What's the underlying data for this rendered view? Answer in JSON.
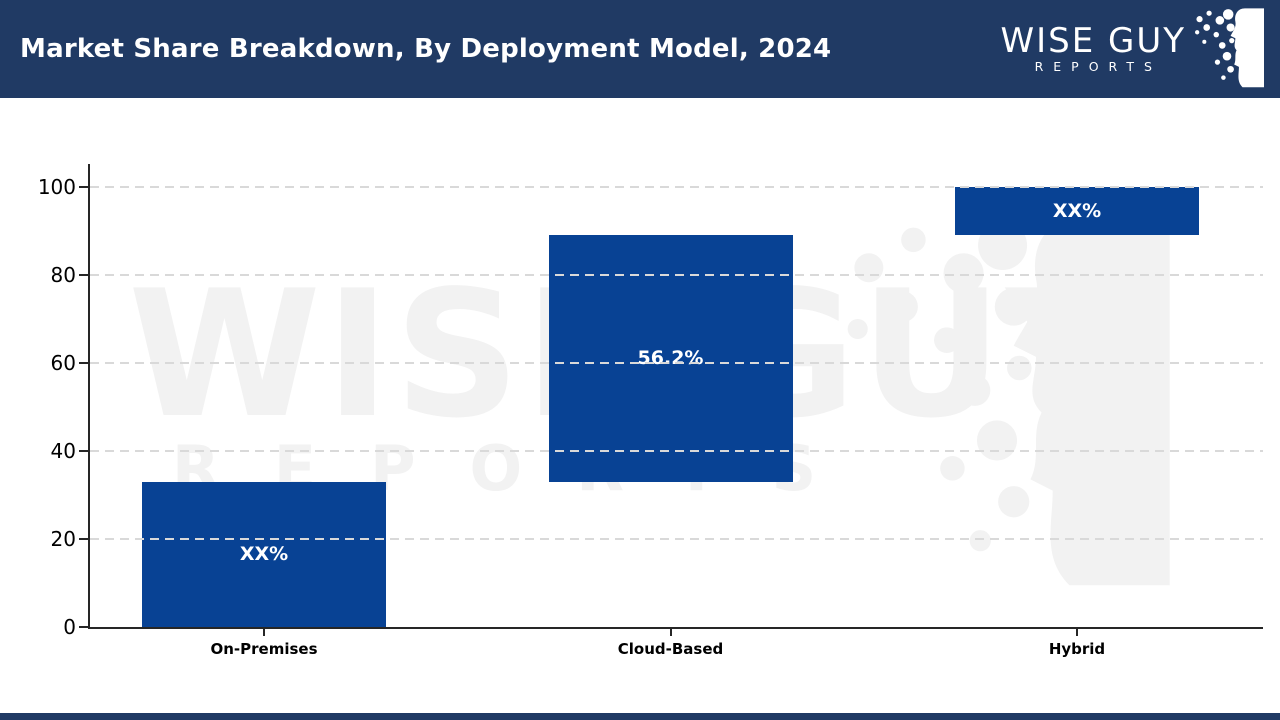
{
  "header": {
    "title": "Market Share Breakdown, By Deployment Model, 2024",
    "logo": {
      "line1": "WISE GUY",
      "line2": "REPORTS"
    }
  },
  "watermark": {
    "line1": "WISE GUY",
    "line2": "REPORTS"
  },
  "chart_data": {
    "type": "bar",
    "subtype": "floating-segment-waterfall",
    "title": "Market Share Breakdown, By Deployment Model, 2024",
    "categories": [
      "On-Premises",
      "Cloud-Based",
      "Hybrid"
    ],
    "segments": [
      {
        "category": "On-Premises",
        "start": 0,
        "value": 33.0,
        "label": "XX%"
      },
      {
        "category": "Cloud-Based",
        "start": 33.0,
        "value": 56.2,
        "label": "56.2%"
      },
      {
        "category": "Hybrid",
        "start": 89.2,
        "value": 10.8,
        "label": "XX%"
      }
    ],
    "xlabel": "",
    "ylabel": "",
    "ylim": [
      0,
      100
    ],
    "y_ticks": [
      0,
      20,
      40,
      60,
      80,
      100
    ],
    "grid": "dashed-horizontal",
    "legend": "none",
    "bar_color": "#084294",
    "bar_label_color": "#ffffff"
  },
  "colors": {
    "header_bg": "#203a64",
    "footer_bg": "#203a64",
    "bar": "#084294",
    "gridline": "#d9d9d9",
    "axis": "#262626",
    "watermark": "#f2f2f2",
    "title_text": "#ffffff"
  }
}
